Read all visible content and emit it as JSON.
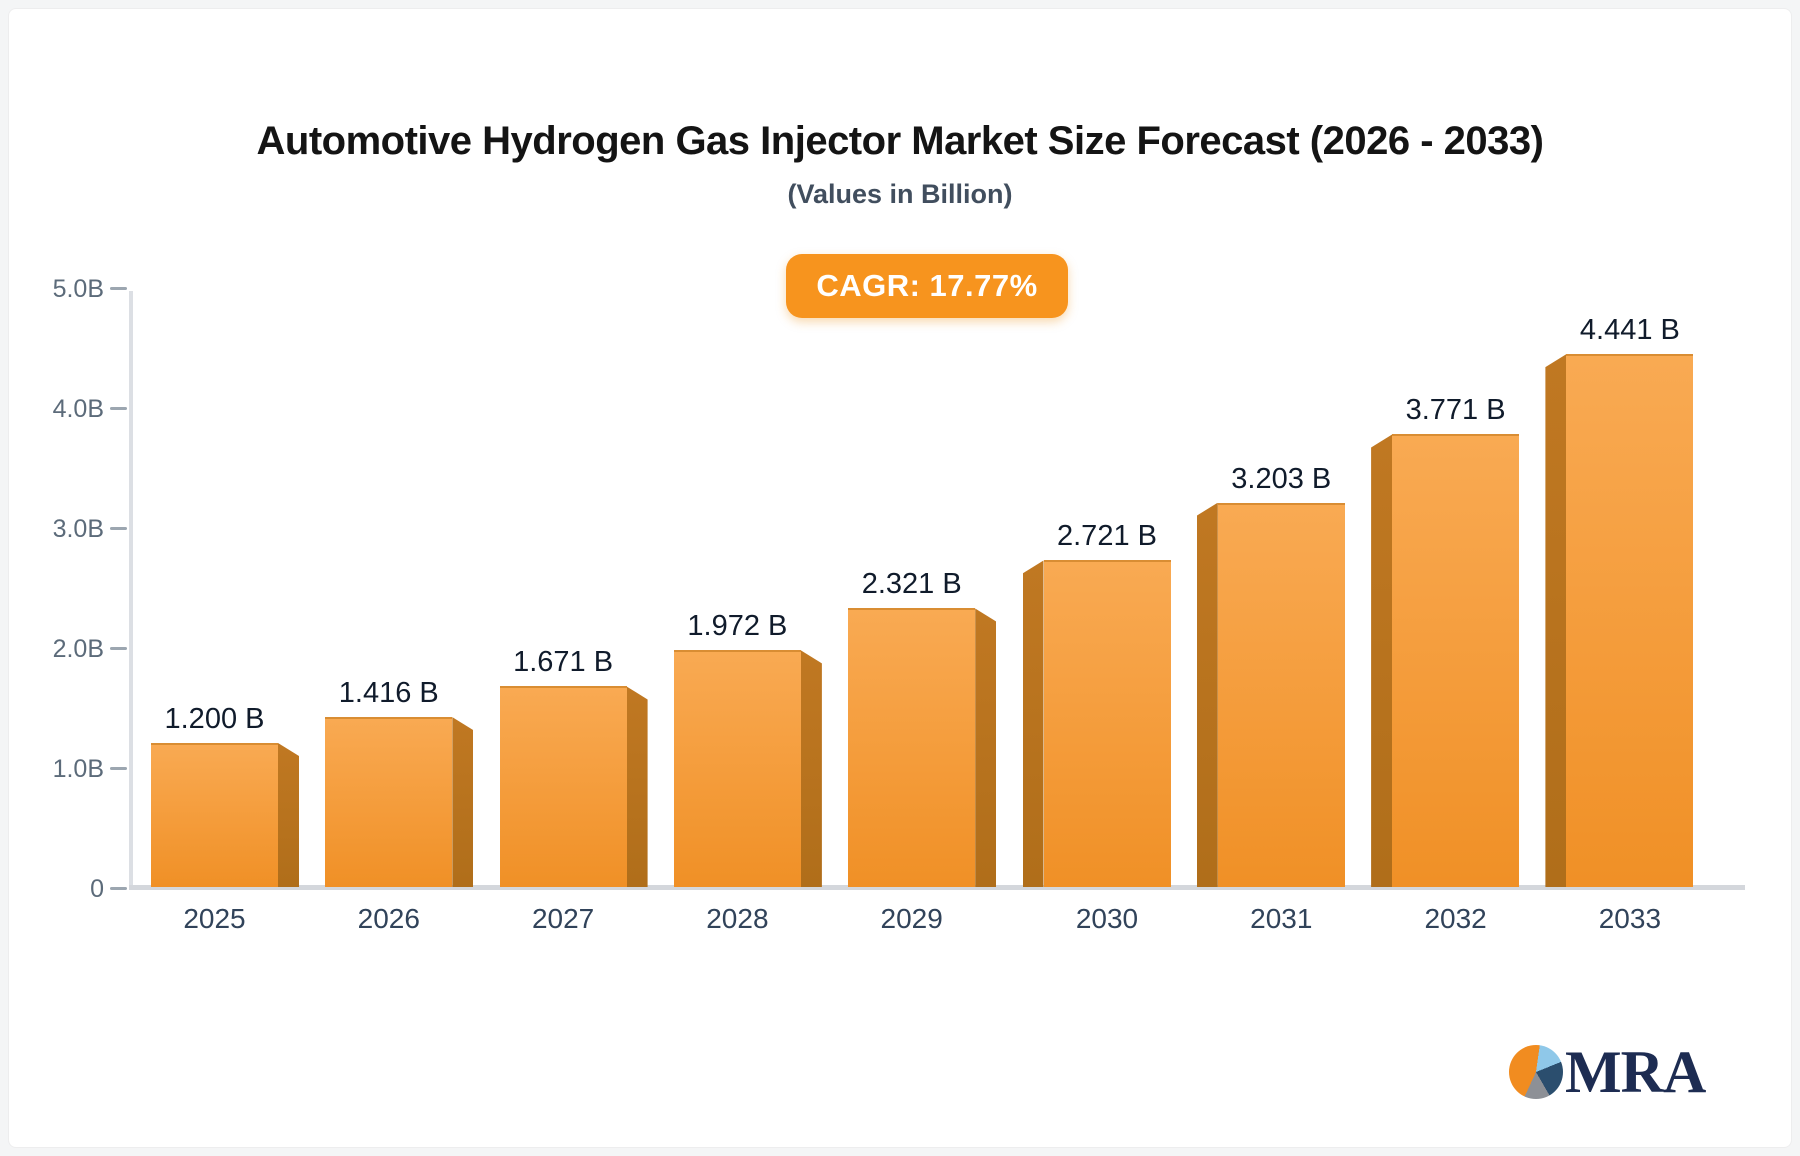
{
  "page": {
    "title": "Automotive Hydrogen Gas Injector Market Size Forecast (2026 - 2033)",
    "subtitle": "(Values in Billion)",
    "cagr_label": "CAGR: 17.77%",
    "logo_text": "MRA",
    "colors": {
      "bar_front_top": "#f9aa53",
      "bar_front_bottom": "#f09026",
      "bar_side": "#b9731e",
      "badge_orange": "#f7941e",
      "axis_gray": "#d4d7dc",
      "y_label_gray": "#5c6b7a",
      "x_label_slate": "#31435a",
      "value_label_dark": "#101b2b",
      "logo_navy": "#1d2c52"
    }
  },
  "chart_data": {
    "type": "bar",
    "title": "Automotive Hydrogen Gas Injector Market Size Forecast (2026 - 2033)",
    "subtitle": "(Values in Billion)",
    "cagr_pct": 17.77,
    "categories": [
      "2025",
      "2026",
      "2027",
      "2028",
      "2029",
      "2030",
      "2031",
      "2032",
      "2033"
    ],
    "values": [
      1.2,
      1.416,
      1.671,
      1.972,
      2.321,
      2.721,
      3.203,
      3.771,
      4.441
    ],
    "bar_labels": [
      "1.200 B",
      "1.416 B",
      "1.671 B",
      "1.972 B",
      "2.321 B",
      "2.721 B",
      "3.203 B",
      "3.771 B",
      "4.441 B"
    ],
    "xlabel": "",
    "ylabel": "",
    "y_ticks": [
      "0",
      "1.0B",
      "2.0B",
      "3.0B",
      "4.0B",
      "5.0B"
    ],
    "ylim": [
      0,
      5
    ],
    "grid": false,
    "legend": false,
    "style": "3d-orange-bars"
  }
}
